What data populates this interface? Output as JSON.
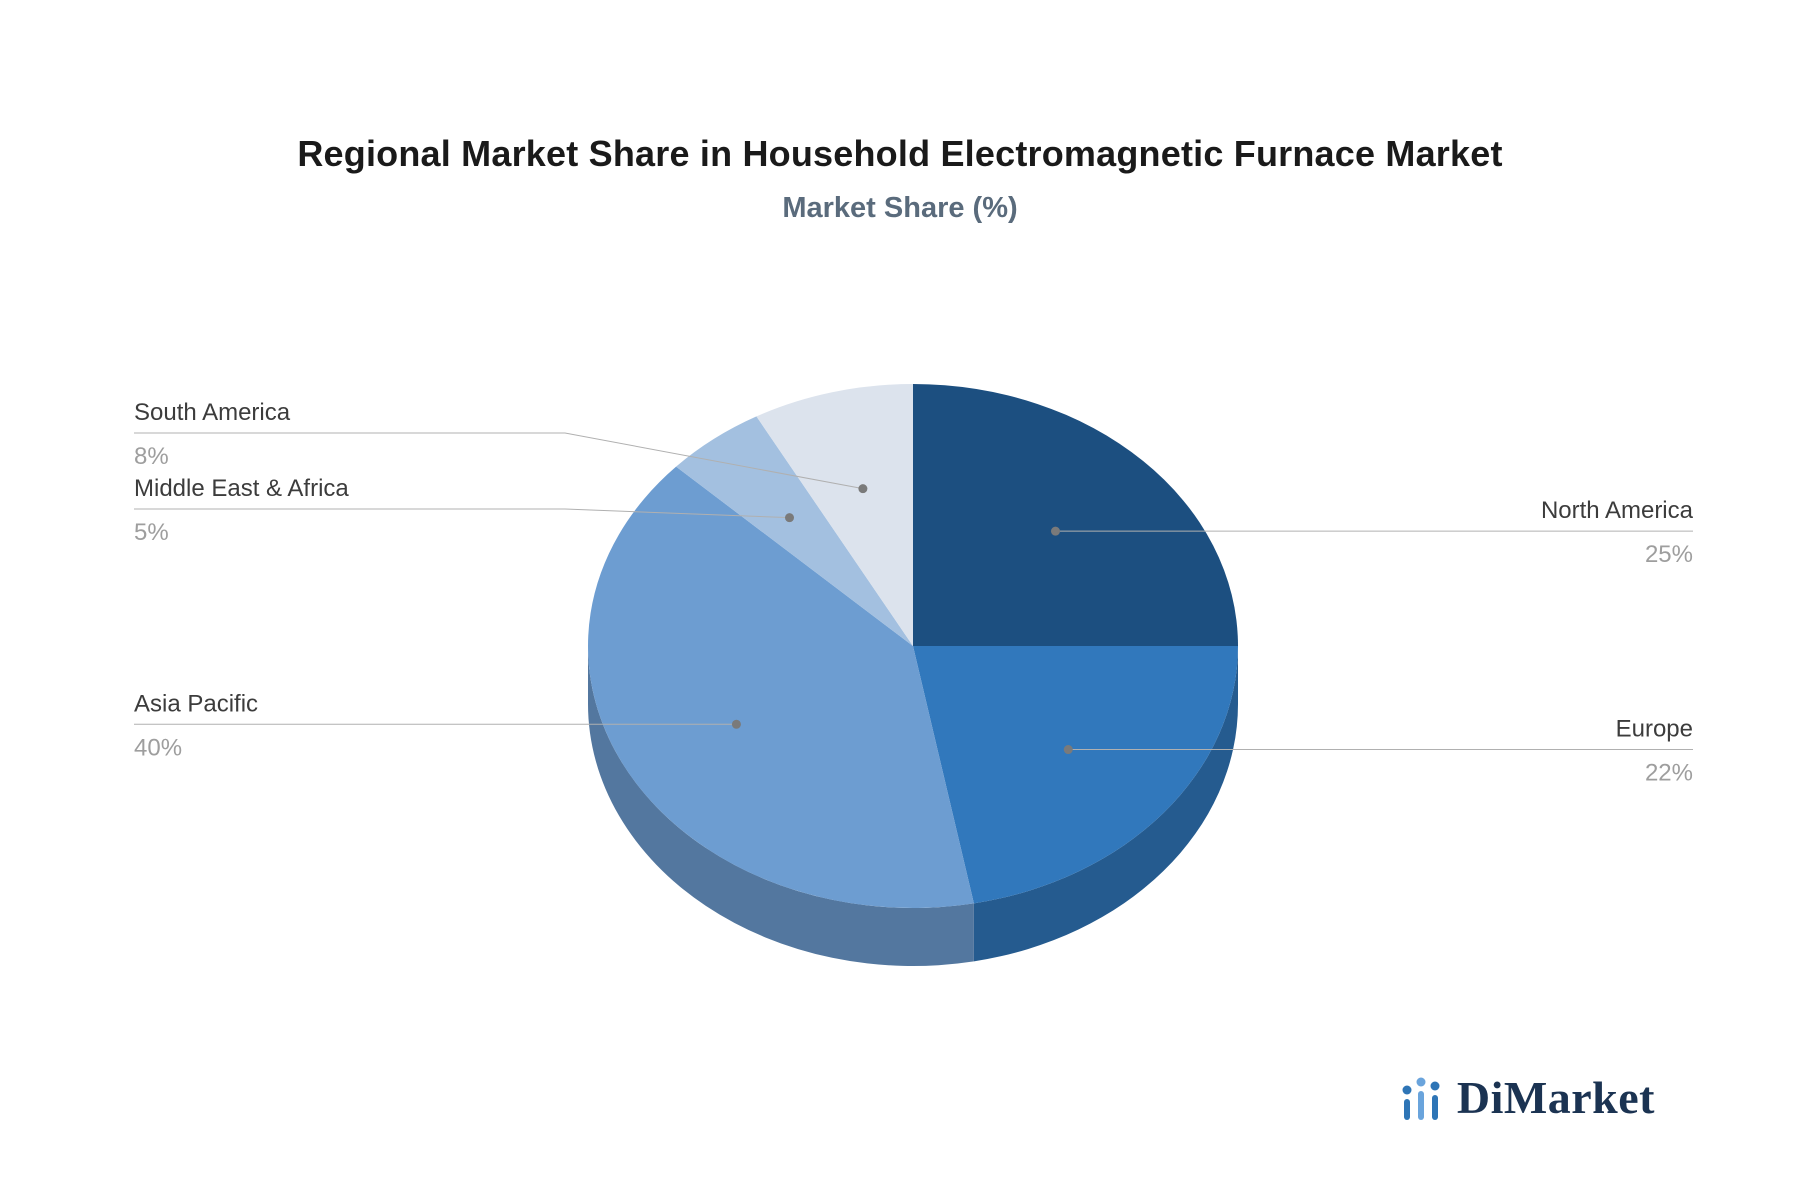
{
  "title": "Regional Market Share in Household Electromagnetic Furnace Market",
  "subtitle": "Market Share (%)",
  "logo": {
    "text": "DiMarket",
    "icon": "mini-bar-chart-icon",
    "icon_color": "#2e75b6",
    "icon_accent_color": "#6aa4dc",
    "text_color": "#1b3352"
  },
  "chart_data": {
    "type": "pie",
    "title": "Regional Market Share in Household Electromagnetic Furnace Market",
    "subtitle": "Market Share (%)",
    "unit": "%",
    "effect": "3d-depth",
    "legend": "none",
    "labels_style": "outside-leader-lines",
    "start_angle": "top-clockwise",
    "slices": [
      {
        "label": "North America",
        "value": 25,
        "display": "25%",
        "color": "#1c4f80",
        "label_side": "right"
      },
      {
        "label": "Europe",
        "value": 22,
        "display": "22%",
        "color": "#3178bc",
        "label_side": "right"
      },
      {
        "label": "Asia Pacific",
        "value": 40,
        "display": "40%",
        "color": "#6d9dd1",
        "label_side": "left"
      },
      {
        "label": "Middle East & Africa",
        "value": 5,
        "display": "5%",
        "color": "#a3c0e0",
        "label_side": "left"
      },
      {
        "label": "South America",
        "value": 8,
        "display": "8%",
        "color": "#dce3ed",
        "label_side": "left"
      }
    ]
  },
  "colors": {
    "leader_line": "#b0b0b0",
    "leader_dot": "#7a7a7a",
    "label_text": "#3c3c3c",
    "value_text": "#9e9e9e",
    "background": "#ffffff"
  }
}
